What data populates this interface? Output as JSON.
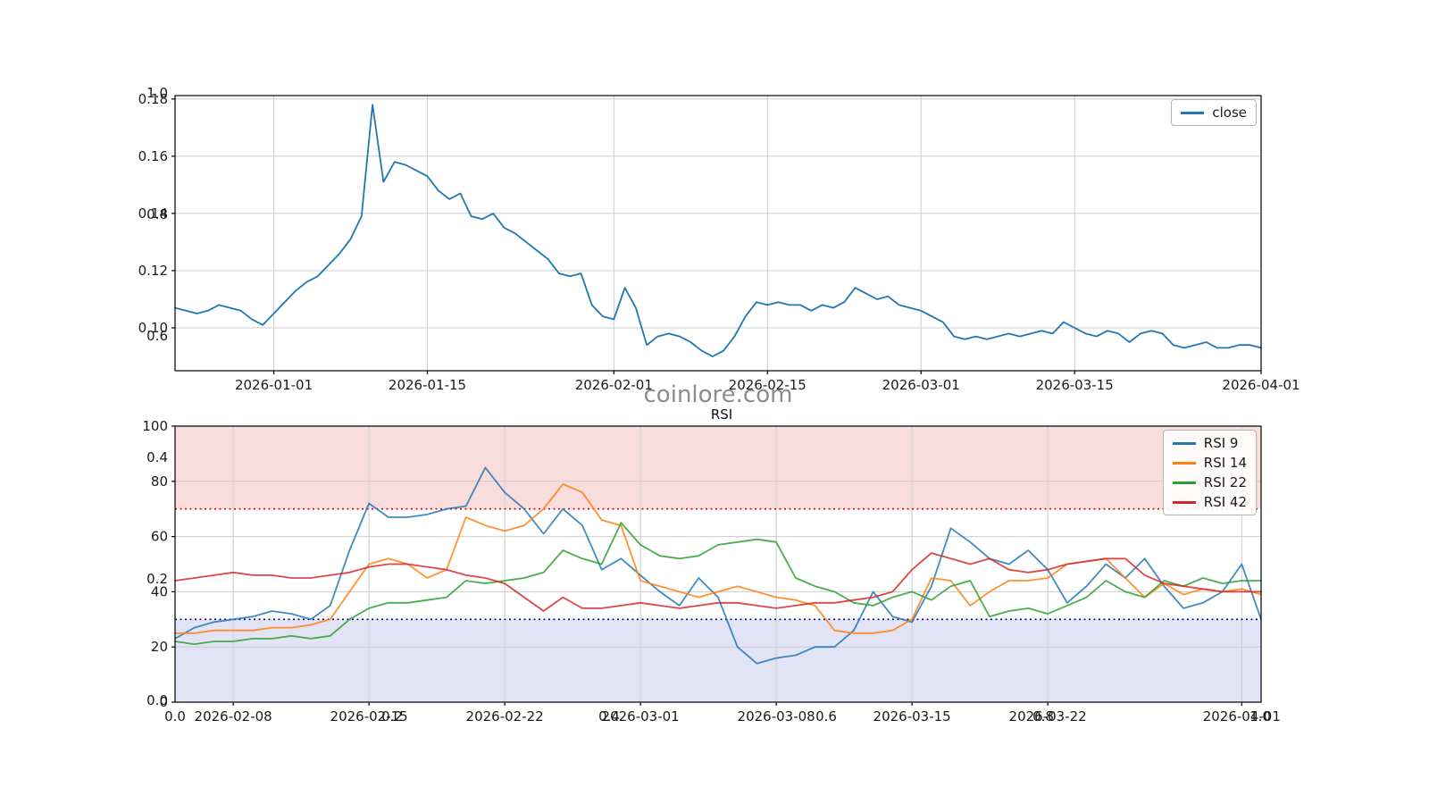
{
  "watermark": "coinlore.com",
  "overlay_axis": {
    "yticks": [
      "1.0",
      "0.8",
      "0.6",
      "0.4",
      "0.2",
      "0.0"
    ],
    "xticks": [
      "0.0",
      "0.2",
      "0.4",
      "0.6",
      "0.8",
      "1.0"
    ]
  },
  "chart_data": [
    {
      "type": "line",
      "name": "price",
      "title": "",
      "x_start": "2025-12-23",
      "x_end": "2026-04-01",
      "ylim": [
        0.085,
        0.1812
      ],
      "grid": true,
      "legend_position": "upper right",
      "yticks": [
        {
          "value": 0.1,
          "label": "0.10"
        },
        {
          "value": 0.12,
          "label": "0.12"
        },
        {
          "value": 0.14,
          "label": "0.14"
        },
        {
          "value": 0.16,
          "label": "0.16"
        },
        {
          "value": 0.18,
          "label": "0.18"
        }
      ],
      "xticks": [
        {
          "index": 9,
          "label": "2026-01-01"
        },
        {
          "index": 23,
          "label": "2026-01-15"
        },
        {
          "index": 40,
          "label": "2026-02-01"
        },
        {
          "index": 54,
          "label": "2026-02-15"
        },
        {
          "index": 68,
          "label": "2026-03-01"
        },
        {
          "index": 82,
          "label": "2026-03-15"
        },
        {
          "index": 99,
          "label": "2026-04-01"
        }
      ],
      "series": [
        {
          "name": "close",
          "color": "#1f77b4",
          "opacity": 1,
          "values": [
            0.107,
            0.106,
            0.105,
            0.106,
            0.108,
            0.107,
            0.106,
            0.103,
            0.101,
            0.105,
            0.109,
            0.113,
            0.116,
            0.118,
            0.122,
            0.126,
            0.131,
            0.139,
            0.178,
            0.151,
            0.158,
            0.157,
            0.155,
            0.153,
            0.148,
            0.145,
            0.147,
            0.139,
            0.138,
            0.14,
            0.135,
            0.133,
            0.13,
            0.127,
            0.124,
            0.119,
            0.118,
            0.119,
            0.108,
            0.104,
            0.103,
            0.114,
            0.107,
            0.094,
            0.097,
            0.098,
            0.097,
            0.095,
            0.092,
            0.09,
            0.092,
            0.097,
            0.104,
            0.109,
            0.108,
            0.109,
            0.108,
            0.108,
            0.106,
            0.108,
            0.107,
            0.109,
            0.114,
            0.112,
            0.11,
            0.111,
            0.108,
            0.107,
            0.106,
            0.104,
            0.102,
            0.097,
            0.096,
            0.097,
            0.096,
            0.097,
            0.098,
            0.097,
            0.098,
            0.099,
            0.098,
            0.102,
            0.1,
            0.098,
            0.097,
            0.099,
            0.098,
            0.095,
            0.098,
            0.099,
            0.098,
            0.094,
            0.093,
            0.094,
            0.095,
            0.093,
            0.093,
            0.094,
            0.094,
            0.093
          ]
        }
      ]
    },
    {
      "type": "line",
      "name": "rsi",
      "title": "RSI",
      "x_start": "2026-02-05",
      "x_end": "2026-04-02",
      "ylim": [
        0,
        100
      ],
      "grid": true,
      "legend_position": "upper right",
      "bands": [
        {
          "from": 70,
          "to": 100,
          "color": "#f9dcdc"
        },
        {
          "from": 0,
          "to": 30,
          "color": "#e3e3f6"
        }
      ],
      "thresholds": [
        {
          "value": 70,
          "color": "#d40000"
        },
        {
          "value": 30,
          "color": "#00008b"
        }
      ],
      "yticks": [
        {
          "value": 100,
          "label": "100"
        },
        {
          "value": 80,
          "label": "80"
        },
        {
          "value": 60,
          "label": "60"
        },
        {
          "value": 40,
          "label": "40"
        },
        {
          "value": 20,
          "label": "20"
        },
        {
          "value": 0,
          "label": "0"
        }
      ],
      "xticks": [
        {
          "index": 3,
          "label": "2026-02-08"
        },
        {
          "index": 10,
          "label": "2026-02-15"
        },
        {
          "index": 17,
          "label": "2026-02-22"
        },
        {
          "index": 24,
          "label": "2026-03-01"
        },
        {
          "index": 31,
          "label": "2026-03-08"
        },
        {
          "index": 38,
          "label": "2026-03-15"
        },
        {
          "index": 45,
          "label": "2026-03-22"
        },
        {
          "index": 55,
          "label": "2026-04-01"
        }
      ],
      "series": [
        {
          "name": "RSI 9",
          "color": "#1f77b4",
          "opacity": 0.85,
          "values": [
            23,
            27,
            29,
            30,
            31,
            33,
            32,
            30,
            35,
            55,
            72,
            67,
            67,
            68,
            70,
            71,
            85,
            76,
            70,
            61,
            70,
            64,
            48,
            52,
            46,
            40,
            35,
            45,
            38,
            20,
            14,
            16,
            17,
            20,
            20,
            26,
            40,
            31,
            29,
            42,
            63,
            58,
            52,
            50,
            55,
            48,
            36,
            42,
            50,
            45,
            52,
            42,
            34,
            36,
            40,
            50,
            30
          ]
        },
        {
          "name": "RSI 14",
          "color": "#ff7f0e",
          "opacity": 0.85,
          "values": [
            25,
            25,
            26,
            26,
            26,
            27,
            27,
            28,
            30,
            40,
            50,
            52,
            50,
            45,
            48,
            67,
            64,
            62,
            64,
            70,
            79,
            76,
            66,
            64,
            44,
            42,
            40,
            38,
            40,
            42,
            40,
            38,
            37,
            35,
            26,
            25,
            25,
            26,
            30,
            45,
            44,
            35,
            40,
            44,
            44,
            45,
            50,
            51,
            52,
            45,
            38,
            43,
            39,
            41,
            40,
            41,
            39
          ]
        },
        {
          "name": "RSI 22",
          "color": "#2ca02c",
          "opacity": 0.85,
          "values": [
            22,
            21,
            22,
            22,
            23,
            23,
            24,
            23,
            24,
            30,
            34,
            36,
            36,
            37,
            38,
            44,
            43,
            44,
            45,
            47,
            55,
            52,
            50,
            65,
            57,
            53,
            52,
            53,
            57,
            58,
            59,
            58,
            45,
            42,
            40,
            36,
            35,
            38,
            40,
            37,
            42,
            44,
            31,
            33,
            34,
            32,
            35,
            38,
            44,
            40,
            38,
            44,
            42,
            45,
            43,
            44,
            44
          ]
        },
        {
          "name": "RSI 42",
          "color": "#d62728",
          "opacity": 0.85,
          "values": [
            44,
            45,
            46,
            47,
            46,
            46,
            45,
            45,
            46,
            47,
            49,
            50,
            50,
            49,
            48,
            46,
            45,
            43,
            38,
            33,
            38,
            34,
            34,
            35,
            36,
            35,
            34,
            35,
            36,
            36,
            35,
            34,
            35,
            36,
            36,
            37,
            38,
            40,
            48,
            54,
            52,
            50,
            52,
            48,
            47,
            48,
            50,
            51,
            52,
            52,
            46,
            43,
            42,
            41,
            40,
            40,
            40
          ]
        }
      ]
    }
  ]
}
